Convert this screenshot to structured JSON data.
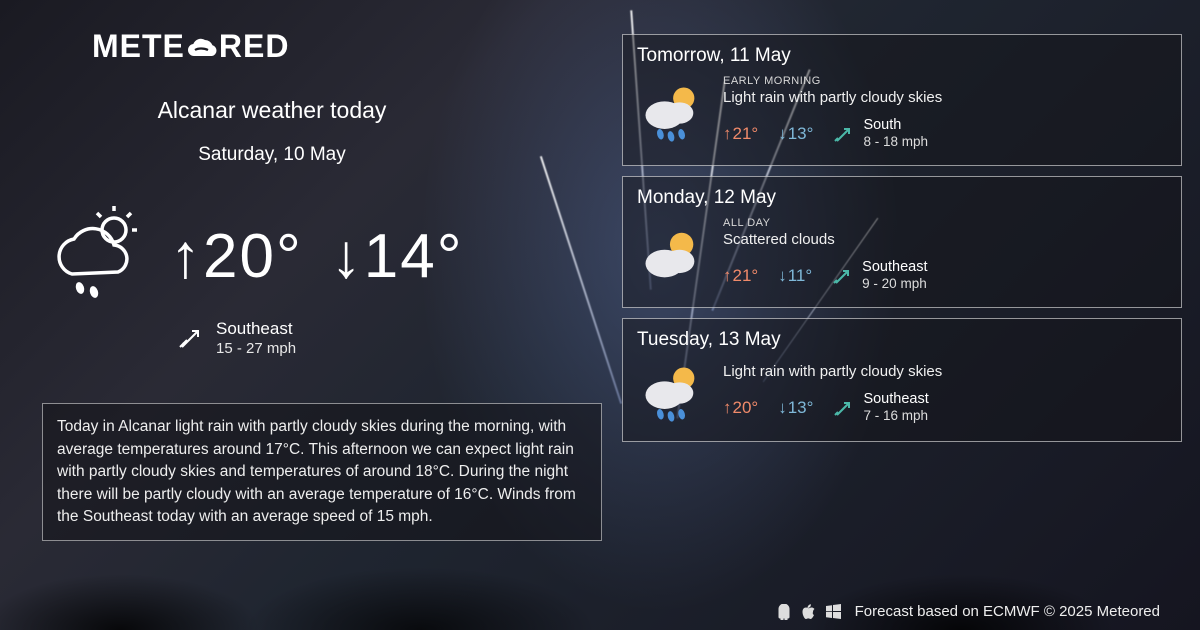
{
  "brand": {
    "name_left": "METE",
    "name_right": "RED"
  },
  "header": {
    "title": "Alcanar weather today",
    "date": "Saturday, 10 May"
  },
  "today": {
    "high": "20°",
    "low": "14°",
    "wind_direction": "Southeast",
    "wind_speed": "15 - 27 mph",
    "icon": "rain-partly-cloudy"
  },
  "summary": "Today in Alcanar light rain with partly cloudy skies during the morning, with average temperatures around 17°C. This afternoon we can expect light rain with partly cloudy skies and temperatures of around 18°C. During the night there will be partly cloudy with an average temperature of 16°C. Winds from the Southeast today with an average speed of 15 mph.",
  "forecast": [
    {
      "date": "Tomorrow, 11 May",
      "period": "EARLY MORNING",
      "desc": "Light rain with partly cloudy skies",
      "high": "21°",
      "low": "13°",
      "wind_direction": "South",
      "wind_speed": "8 - 18 mph",
      "icon": "rain-partly-cloudy",
      "wind_color": "#4bb8a8"
    },
    {
      "date": "Monday, 12 May",
      "period": "ALL DAY",
      "desc": "Scattered clouds",
      "high": "21°",
      "low": "11°",
      "wind_direction": "Southeast",
      "wind_speed": "9 - 20 mph",
      "icon": "partly-cloudy",
      "wind_color": "#4bb8a8"
    },
    {
      "date": "Tuesday, 13 May",
      "period": "",
      "desc": "Light rain with partly cloudy skies",
      "high": "20°",
      "low": "13°",
      "wind_direction": "Southeast",
      "wind_speed": "7 - 16 mph",
      "icon": "rain-partly-cloudy",
      "wind_color": "#4bb8a8"
    }
  ],
  "footer": {
    "credit": "Forecast based on ECMWF © 2025 Meteored"
  },
  "colors": {
    "text": "#ffffff",
    "high": "#f08a6a",
    "low": "#7fb8d8",
    "wind_accent": "#4bb8a8",
    "card_border": "rgba(255,255,255,0.55)",
    "card_bg": "rgba(20,20,25,0.45)"
  }
}
